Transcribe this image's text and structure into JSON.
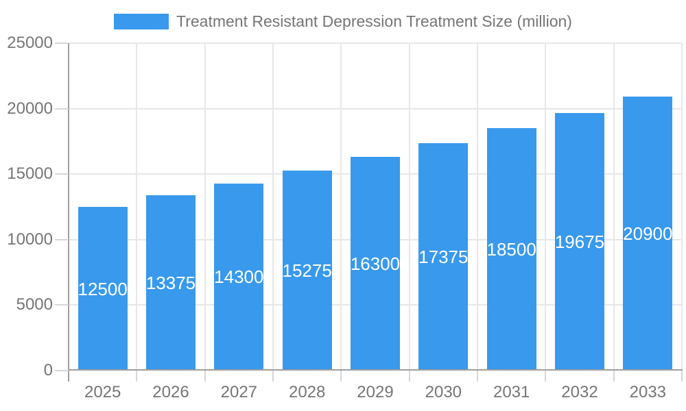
{
  "chart_data": {
    "type": "bar",
    "title": "Treatment Resistant Depression Treatment Size (million)",
    "categories": [
      "2025",
      "2026",
      "2027",
      "2028",
      "2029",
      "2030",
      "2031",
      "2032",
      "2033"
    ],
    "values": [
      12500,
      13375,
      14300,
      15275,
      16300,
      17375,
      18500,
      19675,
      20900
    ],
    "bar_labels": [
      "12500",
      "13375",
      "14300",
      "15275",
      "16300",
      "17375",
      "18500",
      "19675",
      "20900"
    ],
    "xlabel": "",
    "ylabel": "",
    "ylim": [
      0,
      25000
    ],
    "yticks": [
      0,
      5000,
      10000,
      15000,
      20000,
      25000
    ],
    "grid": true,
    "legend_position": "top"
  },
  "colors": {
    "bar": "#3999EC",
    "axis": "#9E9E9E",
    "gridline": "#E7E7E7",
    "tick": "#D6D6D6",
    "text": "#757575",
    "bar_label": "#FFFFFF",
    "background": "#FFFFFF"
  }
}
